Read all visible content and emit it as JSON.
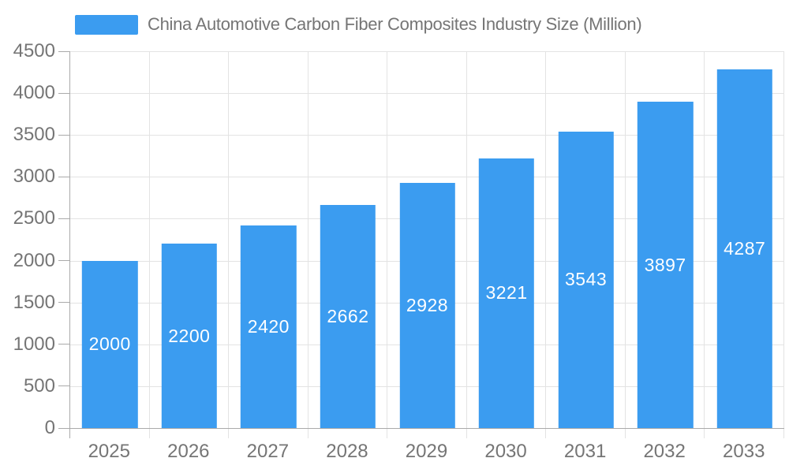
{
  "chart_data": {
    "type": "bar",
    "title": "China Automotive Carbon Fiber Composites Industry Size (Million)",
    "categories": [
      "2025",
      "2026",
      "2027",
      "2028",
      "2029",
      "2030",
      "2031",
      "2032",
      "2033"
    ],
    "values": [
      2000,
      2200,
      2420,
      2662,
      2928,
      3221,
      3543,
      3897,
      4287
    ],
    "xlabel": "",
    "ylabel": "",
    "ylim": [
      0,
      4500
    ],
    "yticks": [
      0,
      500,
      1000,
      1500,
      2000,
      2500,
      3000,
      3500,
      4000,
      4500
    ],
    "grid": true,
    "legend_position": "top-left",
    "value_labels": "inside-center",
    "colors": {
      "bar": "#3B9CF0",
      "bar_value_text": "#FFFFFF",
      "axis_text": "#757575",
      "axis_line": "#AAAAAA",
      "gridline": "#E3E3E3",
      "background": "#FFFFFF"
    }
  }
}
